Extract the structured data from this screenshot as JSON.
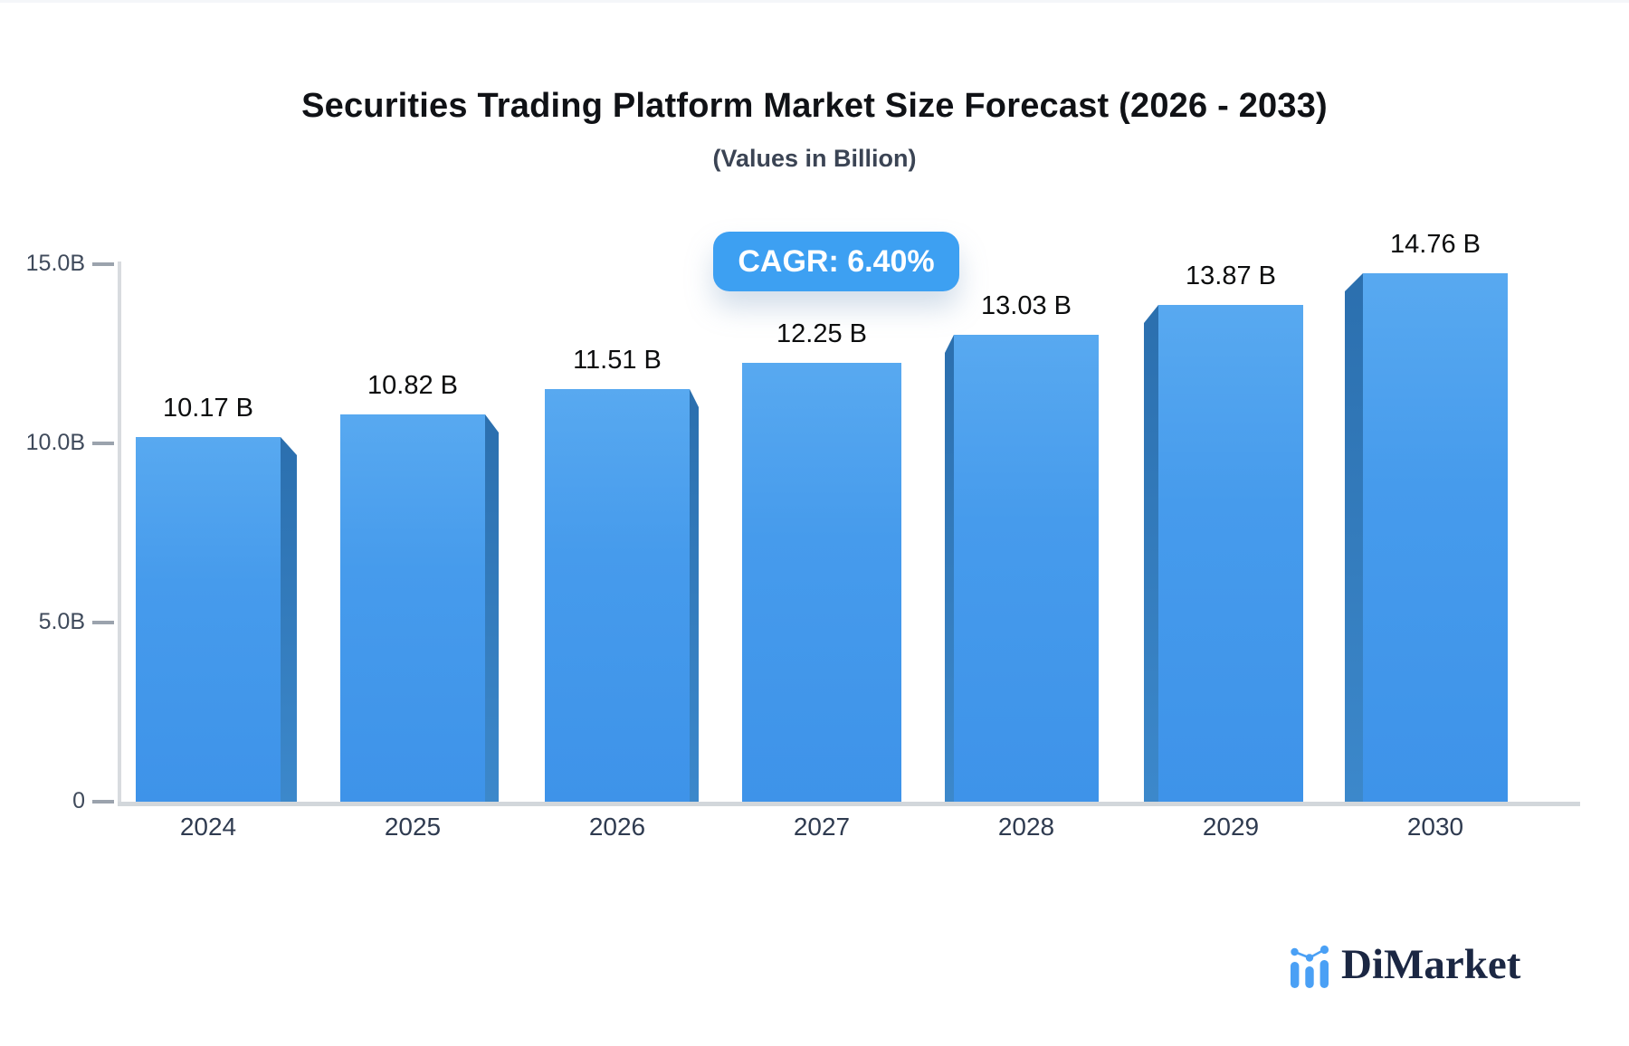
{
  "header": {
    "title": "Securities Trading Platform Market Size Forecast (2026 - 2033)",
    "subtitle": "(Values in Billion)"
  },
  "badge": {
    "label": "CAGR: 6.40%"
  },
  "chart_data": {
    "type": "bar",
    "title": "Securities Trading Platform Market Size Forecast (2026 - 2033)",
    "subtitle": "(Values in Billion)",
    "categories": [
      "2024",
      "2025",
      "2026",
      "2027",
      "2028",
      "2029",
      "2030"
    ],
    "values": [
      10.17,
      10.82,
      11.51,
      12.25,
      13.03,
      13.87,
      14.76
    ],
    "value_labels": [
      "10.17 B",
      "10.82 B",
      "11.51 B",
      "12.25 B",
      "13.03 B",
      "13.87 B",
      "14.76 B"
    ],
    "cagr_label": "CAGR: 6.40%",
    "xlabel": "",
    "ylabel": "",
    "ylim": [
      0,
      15
    ],
    "yticks": [
      {
        "value": 0,
        "label": "0"
      },
      {
        "value": 5,
        "label": "5.0B"
      },
      {
        "value": 10,
        "label": "10.0B"
      },
      {
        "value": 15,
        "label": "15.0B"
      }
    ],
    "grid": false,
    "legend": false,
    "bar_style": "3d-extruded"
  },
  "colors": {
    "bar_top": "#58a9f0",
    "bar_mid": "#469bec",
    "bar_bottom": "#3e93e9",
    "bar_side": "#3079ba",
    "badge_bg": "#3da0f2",
    "axis_line": "#d8dbdf",
    "tick_text": "#3f4a5b",
    "xlabel_text": "#2f3b50",
    "value_text": "#0c0d0e",
    "logo_blue": "#4aa0f5",
    "logo_text": "#1b2743"
  },
  "logo": {
    "text": "DiMarket"
  }
}
